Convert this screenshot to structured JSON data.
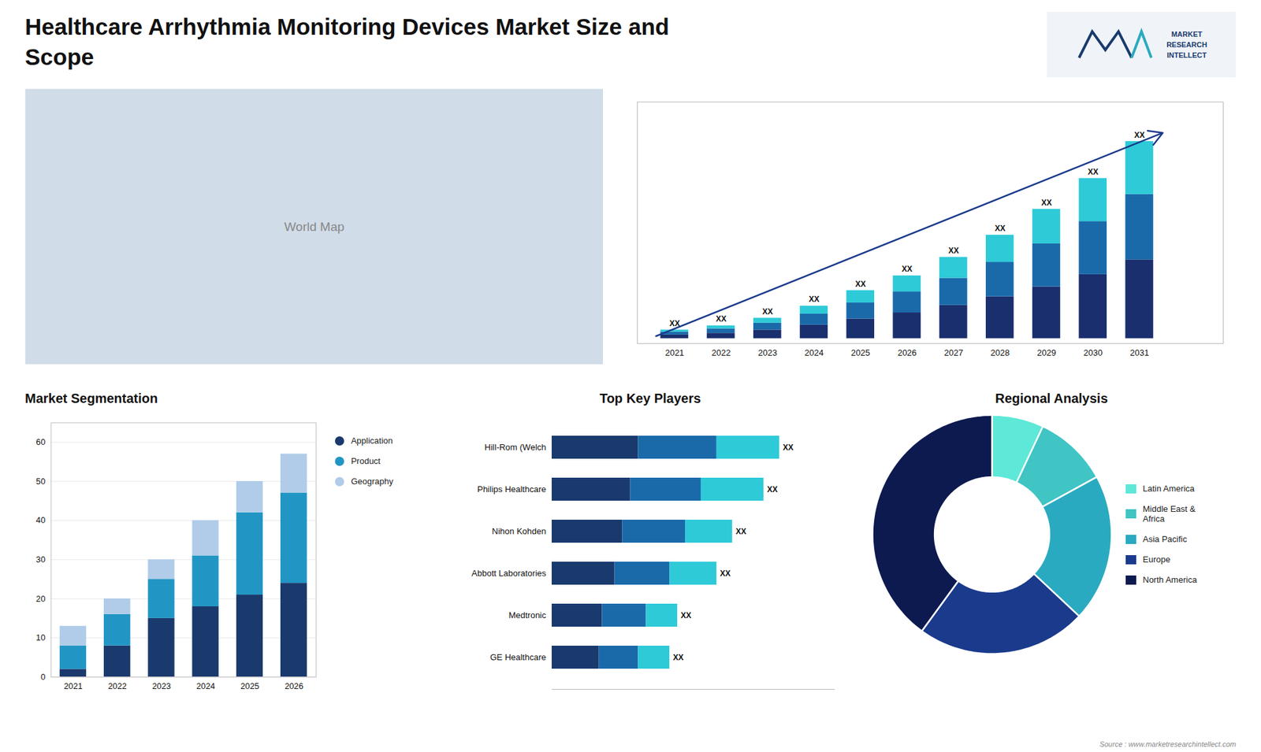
{
  "title": "Healthcare Arrhythmia Monitoring Devices Market Size and\nScope",
  "annotations": [
    "MARKET",
    "RESEARCH",
    "INTELLECT",
    "Source : www.marketresearchintellect.com"
  ],
  "chart_data": [
    {
      "type": "map",
      "annotations": [
        "World Map"
      ]
    },
    {
      "type": "bar",
      "stacked": true,
      "x": [
        2021,
        2022,
        2023,
        2024,
        2025,
        2026,
        2027,
        2028,
        2029,
        2030,
        2031
      ],
      "xlim": [
        2020.2,
        2032.8
      ],
      "xticks": [
        2021,
        2022,
        2023,
        2024,
        2025,
        2026,
        2027,
        2028,
        2029,
        2030,
        2031
      ],
      "ylim": [
        -2,
        96
      ],
      "tick_labels": "x",
      "series": [
        {
          "color": "#1a2f6e",
          "values": [
            1.5,
            2.2,
            3.5,
            5.5,
            8.0,
            10.5,
            13.5,
            17.0,
            21.0,
            26.0,
            32.0
          ]
        },
        {
          "color": "#1a6aaa",
          "values": [
            1.2,
            1.8,
            2.8,
            4.5,
            6.5,
            8.5,
            11.0,
            14.0,
            17.5,
            21.5,
            26.5
          ]
        },
        {
          "color": "#2ecad8",
          "values": [
            0.8,
            1.2,
            2.0,
            3.2,
            5.0,
            6.5,
            8.5,
            11.0,
            14.0,
            17.5,
            21.5
          ]
        }
      ],
      "value_labels": [
        "XX",
        "XX",
        "XX",
        "XX",
        "XX",
        "XX",
        "XX",
        "XX",
        "XX",
        "XX",
        "XX"
      ]
    },
    {
      "type": "bar",
      "title": "Market Segmentation",
      "stacked": true,
      "x": [
        2021,
        2022,
        2023,
        2024,
        2025,
        2026
      ],
      "xlim": [
        2020.5,
        2026.5
      ],
      "xticks": [
        2021,
        2022,
        2023,
        2024,
        2025,
        2026
      ],
      "ylim": [
        0,
        65
      ],
      "yticks": [
        0,
        10,
        20,
        30,
        40,
        50,
        60
      ],
      "grid": true,
      "legend": "right",
      "series": [
        {
          "name": "Application",
          "color": "#1a3a6e",
          "values": [
            2,
            8,
            15,
            18,
            21,
            24
          ]
        },
        {
          "name": "Product",
          "color": "#2196c4",
          "values": [
            6,
            8,
            10,
            13,
            21,
            23
          ]
        },
        {
          "name": "Geography",
          "color": "#b0cce8",
          "values": [
            5,
            4,
            5,
            9,
            8,
            10
          ]
        }
      ]
    },
    {
      "type": "bar",
      "title": "Top Key Players",
      "orientation": "horizontal",
      "stacked": true,
      "categories": [
        "Hill-Rom (Welch",
        "Philips Healthcare",
        "Nihon Kohden",
        "Abbott Laboratories",
        "Medtronic",
        "GE Healthcare"
      ],
      "xlim": [
        0,
        18
      ],
      "tick_labels": "y",
      "series": [
        {
          "color": "#1a3a6e",
          "values": [
            5.5,
            5.0,
            4.5,
            4.0,
            3.2,
            3.0
          ]
        },
        {
          "color": "#1a6aaa",
          "values": [
            5.0,
            4.5,
            4.0,
            3.5,
            2.8,
            2.5
          ]
        },
        {
          "color": "#2ecad8",
          "values": [
            4.0,
            4.0,
            3.0,
            3.0,
            2.0,
            2.0
          ]
        }
      ],
      "value_labels": [
        "XX",
        "XX",
        "XX",
        "XX",
        "XX",
        "XX"
      ]
    },
    {
      "type": "pie",
      "title": "Regional Analysis",
      "categories": [
        "Latin America",
        "Middle East &\nAfrica",
        "Asia Pacific",
        "Europe",
        "North America"
      ],
      "values": [
        7,
        10,
        20,
        23,
        40
      ],
      "colors": [
        "#5de8d8",
        "#40c4c4",
        "#2aaac0",
        "#1a3a8c",
        "#0d1a50"
      ],
      "legend": "right"
    }
  ]
}
